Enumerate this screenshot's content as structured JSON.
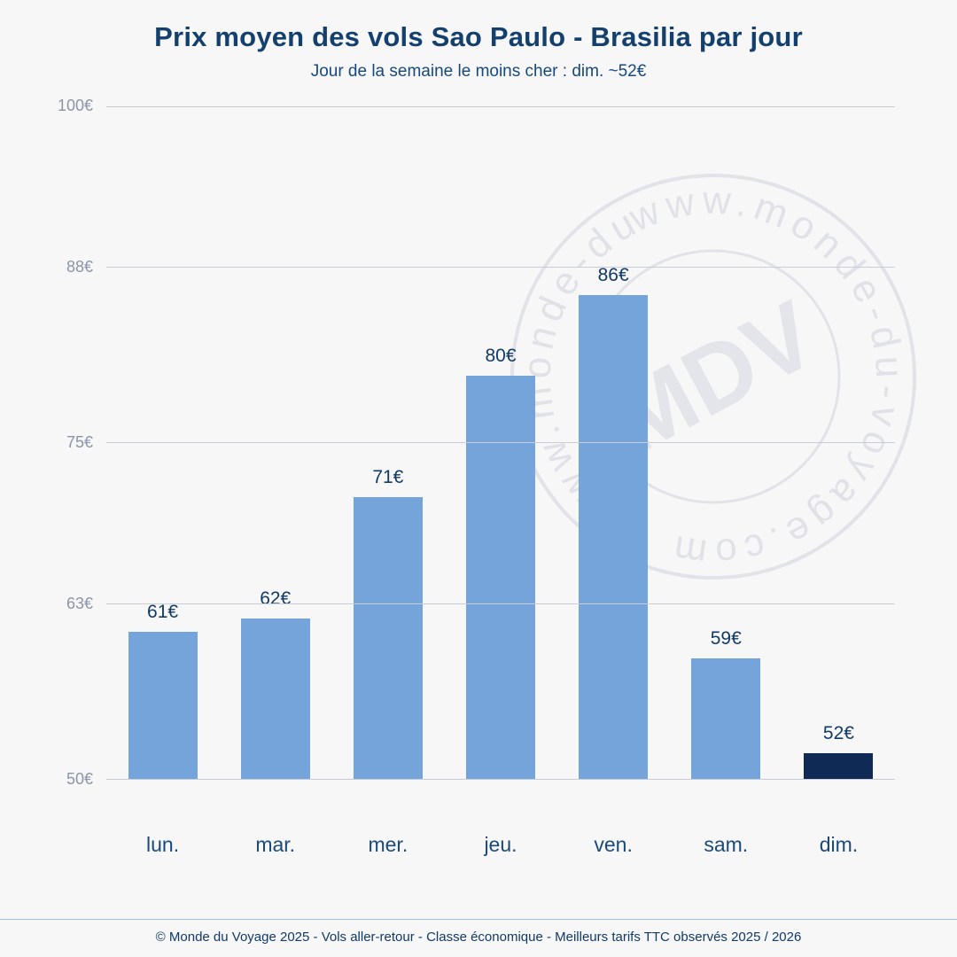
{
  "header": {
    "title": "Prix moyen des vols Sao Paulo - Brasilia par jour",
    "subtitle": "Jour de la semaine le moins cher : dim. ~52€"
  },
  "chart_data": {
    "type": "bar",
    "categories": [
      "lun.",
      "mar.",
      "mer.",
      "jeu.",
      "ven.",
      "sam.",
      "dim."
    ],
    "values": [
      61,
      62,
      71,
      80,
      86,
      59,
      52
    ],
    "value_labels": [
      "61€",
      "62€",
      "71€",
      "80€",
      "86€",
      "59€",
      "52€"
    ],
    "title": "Prix moyen des vols Sao Paulo - Brasilia par jour",
    "xlabel": "",
    "ylabel": "",
    "ylim": [
      50,
      100
    ],
    "yticks": [
      100,
      88,
      75,
      63,
      50
    ],
    "ytick_labels": [
      "100€",
      "88€",
      "75€",
      "63€",
      "50€"
    ],
    "grid": true,
    "legend": "none",
    "bar_color": "#74a4da",
    "highlight_index": 6,
    "highlight_color": "#0e2a55",
    "cheapest_day": "dim.",
    "cheapest_price": "52€"
  },
  "watermark": {
    "ring_text": "www.monde-du-voyage.com · www.monde-du-voyage",
    "center_text": "MDV"
  },
  "footer": {
    "text": "© Monde du Voyage 2025 - Vols aller-retour - Classe économique - Meilleurs tarifs TTC observés 2025 / 2026"
  }
}
